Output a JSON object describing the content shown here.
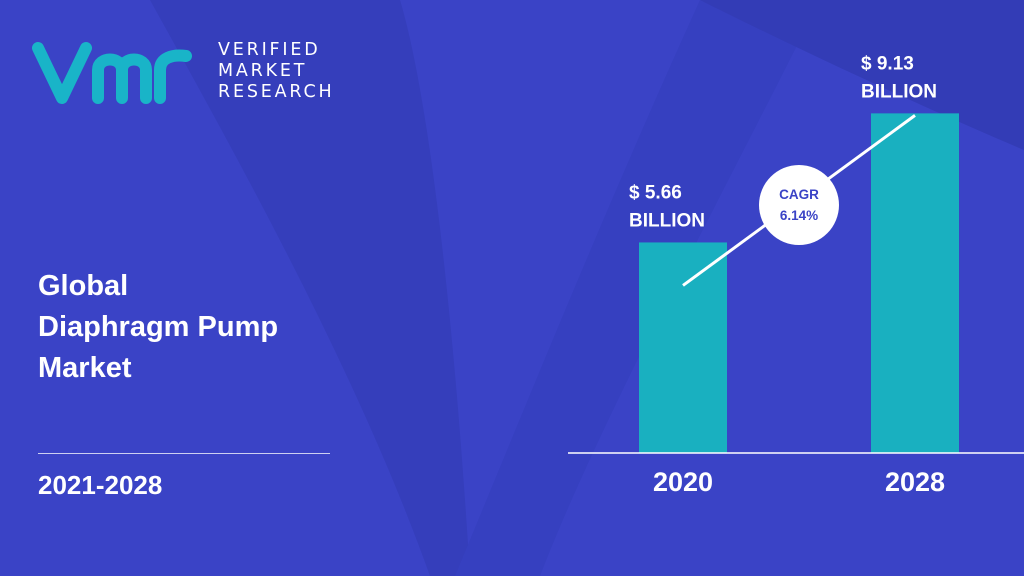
{
  "brand": {
    "name_lines": [
      "VERIFIED",
      "MARKET",
      "RESEARCH"
    ],
    "colors": {
      "background": "#3a43c6",
      "logo": "#19b4c8",
      "bar": "#19b0c0",
      "text": "#ffffff",
      "cagr_text": "#3a43c6"
    }
  },
  "report": {
    "title_lines": [
      "Global",
      "Diaphragm Pump",
      "Market"
    ],
    "period": "2021-2028"
  },
  "chart_data": {
    "type": "bar",
    "categories": [
      "2020",
      "2028"
    ],
    "values": [
      5.66,
      9.13
    ],
    "value_labels": [
      [
        "$ 5.66",
        "BILLION"
      ],
      [
        "$ 9.13",
        "BILLION"
      ]
    ],
    "unit": "BILLION",
    "annotation": {
      "lines": [
        "CAGR",
        "6.14%"
      ]
    },
    "title": "",
    "xlabel": "",
    "ylabel": "",
    "grid": false,
    "legend": "none"
  }
}
